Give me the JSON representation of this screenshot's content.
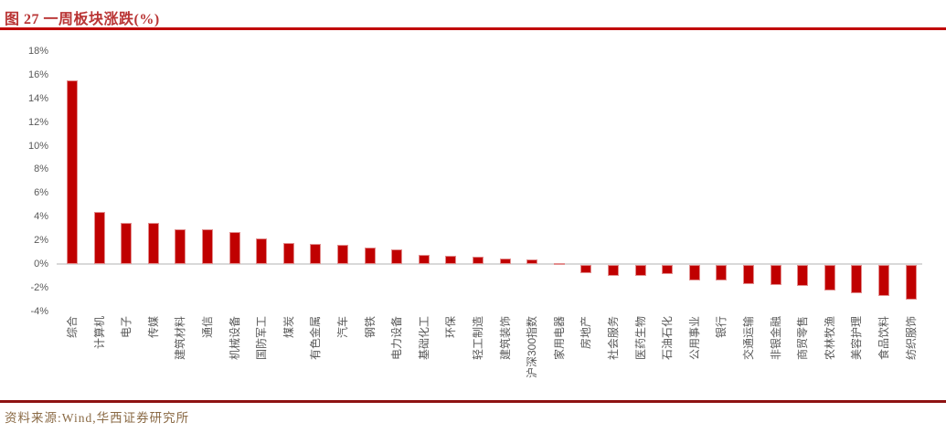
{
  "figure": {
    "title": "图 27 一周板块涨跌(%)",
    "source_note": "资料来源:Wind,华西证券研究所"
  },
  "colors": {
    "title_text": "#b93434",
    "title_rule": "#c00000",
    "bar_fill": "#c00000",
    "bar_border": "#e28d8d",
    "axis_line": "#d9d9d9",
    "tick_text": "#595959",
    "bottom_rule": "#8e1212",
    "source_text": "#8a6a45"
  },
  "chart_data": {
    "type": "bar",
    "title": "一周板块涨跌(%)",
    "xlabel": "",
    "ylabel": "",
    "ylim": [
      -4,
      18
    ],
    "ytick_step": 2,
    "ytick_labels": [
      "18%",
      "16%",
      "14%",
      "12%",
      "10%",
      "8%",
      "6%",
      "4%",
      "2%",
      "0%",
      "-2%",
      "-4%"
    ],
    "grid": false,
    "legend": "none",
    "bar_color": "#c00000",
    "categories": [
      "综合",
      "计算机",
      "电子",
      "传媒",
      "建筑材料",
      "通信",
      "机械设备",
      "国防军工",
      "煤炭",
      "有色金属",
      "汽车",
      "钢铁",
      "电力设备",
      "基础化工",
      "环保",
      "轻工制造",
      "建筑装饰",
      "沪深300指数",
      "家用电器",
      "房地产",
      "社会服务",
      "医药生物",
      "石油石化",
      "公用事业",
      "银行",
      "交通运输",
      "非银金融",
      "商贸零售",
      "农林牧渔",
      "美容护理",
      "食品饮料",
      "纺织服饰"
    ],
    "values": [
      15.5,
      4.4,
      3.5,
      3.5,
      2.9,
      2.9,
      2.7,
      2.2,
      1.8,
      1.7,
      1.6,
      1.4,
      1.2,
      0.8,
      0.7,
      0.6,
      0.5,
      0.4,
      0.1,
      -0.7,
      -0.9,
      -0.9,
      -0.8,
      -1.3,
      -1.3,
      -1.6,
      -1.7,
      -1.8,
      -2.2,
      -2.4,
      -2.6,
      -2.9
    ]
  }
}
